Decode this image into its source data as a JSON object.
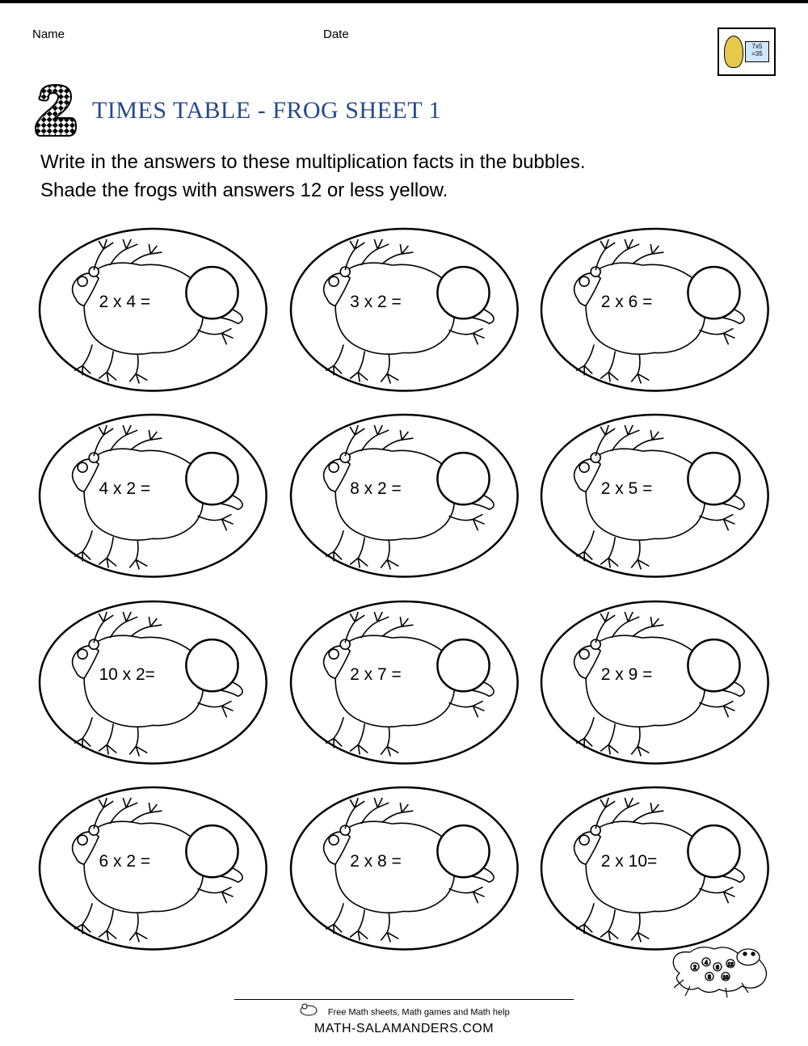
{
  "header": {
    "name_label": "Name",
    "date_label": "Date",
    "logo_formula_top": "7x5",
    "logo_formula_bot": "=35"
  },
  "title": {
    "number_glyph": "2",
    "text": "TIMES TABLE - FROG SHEET 1",
    "text_color": "#254a8a"
  },
  "instructions": {
    "line1": "Write in the answers to these multiplication facts in the bubbles.",
    "line2": "Shade the frogs with answers 12 or less yellow."
  },
  "grid": {
    "cols": 3,
    "rows": 4,
    "oval_stroke": "#000000",
    "oval_stroke_width": 2.5,
    "frog_stroke": "#000000",
    "frog_fill": "#ffffff",
    "answer_circle_stroke_width": 2.5,
    "problem_fontsize": 21,
    "problems": [
      "2 x 4 =",
      "3 x 2 =",
      "2 x 6 =",
      "4 x 2 =",
      "8 x 2 =",
      "2 x 5 =",
      "10 x 2=",
      "2 x 7 =",
      "2 x 9 =",
      "6 x 2 =",
      "2 x 8 =",
      "2 x 10="
    ]
  },
  "footer": {
    "small_text": "Free Math sheets, Math games and Math help",
    "site_text": "MATH-SALAMANDERS.COM"
  }
}
